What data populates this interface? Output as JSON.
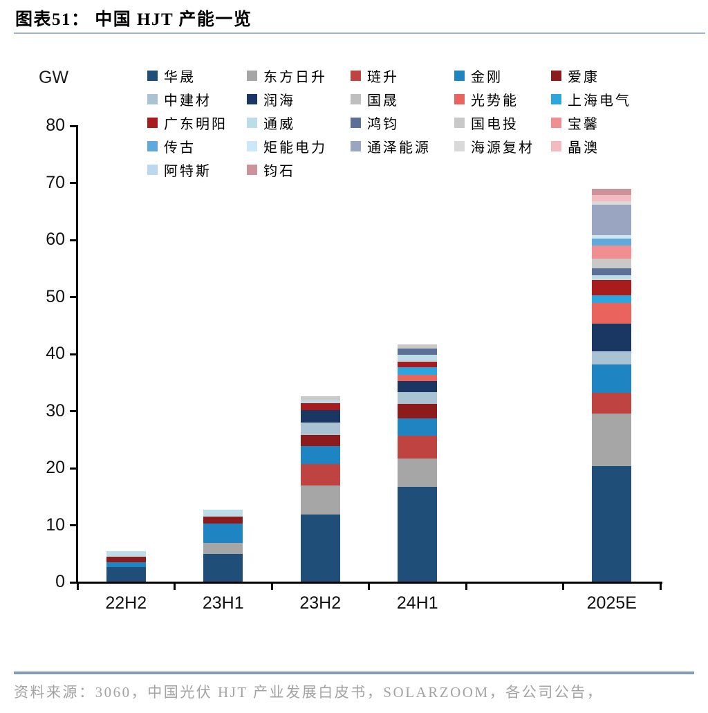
{
  "header": {
    "title": "图表51：  中国 HJT 产能一览"
  },
  "y_axis_unit": "GW",
  "footer": {
    "source": "资料来源：3060，中国光伏 HJT 产业发展白皮书，SOLARZOOM，各公司公告，"
  },
  "colors": {
    "title_underline": "#9DB3D2",
    "footer_divider": "#7F9CBE",
    "axis": "#000000",
    "source_text": "#A3A3A3"
  },
  "chart_data": {
    "type": "bar",
    "stacked": true,
    "title": "中国 HJT 产能一览",
    "unit": "GW",
    "categories": [
      "22H2",
      "23H1",
      "23H2",
      "24H1",
      "",
      "2025E"
    ],
    "ylim": [
      0,
      80
    ],
    "ytick_step": 10,
    "legend_position": "top",
    "grid": false,
    "series": [
      {
        "name": "华晟",
        "color": "#1F4E79",
        "values": [
          2.5,
          4.9,
          11.8,
          16.6,
          0,
          20.2
        ]
      },
      {
        "name": "东方日升",
        "color": "#A6A6A6",
        "values": [
          0,
          1.9,
          5.0,
          5.0,
          0,
          9.2
        ]
      },
      {
        "name": "琏升",
        "color": "#BF4340",
        "values": [
          0,
          0,
          3.8,
          4.0,
          0,
          3.7
        ]
      },
      {
        "name": "金刚",
        "color": "#1E84C2",
        "values": [
          0.9,
          3.4,
          3.2,
          3.0,
          0,
          5.0
        ]
      },
      {
        "name": "爱康",
        "color": "#8E1B1B",
        "values": [
          1.0,
          1.2,
          1.9,
          2.5,
          0,
          0
        ]
      },
      {
        "name": "中建材",
        "color": "#AAC3D2",
        "values": [
          0,
          0,
          2.2,
          2.1,
          0,
          2.3
        ]
      },
      {
        "name": "润海",
        "color": "#1A3764",
        "values": [
          0,
          0,
          2.2,
          2.0,
          0,
          4.8
        ]
      },
      {
        "name": "国晟",
        "color": "#BFBFBF",
        "values": [
          0,
          0,
          0,
          0,
          0,
          0
        ]
      },
      {
        "name": "光势能",
        "color": "#E8645C",
        "values": [
          0,
          0,
          0,
          1.1,
          0,
          3.6
        ]
      },
      {
        "name": "上海电气",
        "color": "#2BA6DE",
        "values": [
          0,
          0,
          0,
          1.3,
          0,
          1.4
        ]
      },
      {
        "name": "广东明阳",
        "color": "#A91C1E",
        "values": [
          0,
          0,
          1.2,
          0.9,
          0,
          2.7
        ]
      },
      {
        "name": "通威",
        "color": "#BCDDE8",
        "values": [
          0.9,
          1.2,
          0.5,
          1.3,
          0,
          0.8
        ]
      },
      {
        "name": "鸿钧",
        "color": "#5C6F97",
        "values": [
          0,
          0,
          0,
          1.0,
          0,
          1.2
        ]
      },
      {
        "name": "国电投",
        "color": "#C9C9C9",
        "values": [
          0,
          0,
          0.7,
          0.8,
          0,
          1.7
        ]
      },
      {
        "name": "宝馨",
        "color": "#F08E92",
        "values": [
          0,
          0,
          0,
          0,
          0,
          2.3
        ]
      },
      {
        "name": "传古",
        "color": "#60A9DC",
        "values": [
          0,
          0,
          0,
          0,
          0,
          1.2
        ]
      },
      {
        "name": "矩能电力",
        "color": "#CEE7F6",
        "values": [
          0,
          0,
          0,
          0,
          0,
          0.6
        ]
      },
      {
        "name": "通泽能源",
        "color": "#99A5C1",
        "values": [
          0,
          0,
          0,
          0,
          0,
          5.4
        ]
      },
      {
        "name": "海源复材",
        "color": "#D9D9D9",
        "values": [
          0,
          0,
          0,
          0,
          0,
          0.6
        ]
      },
      {
        "name": "晶澳",
        "color": "#F3BBC0",
        "values": [
          0,
          0,
          0,
          0,
          0,
          1.0
        ]
      },
      {
        "name": "阿特斯",
        "color": "#BCD8EE",
        "values": [
          0,
          0,
          0,
          0,
          0,
          0
        ]
      },
      {
        "name": "钧石",
        "color": "#CC939B",
        "values": [
          0,
          0,
          0,
          0,
          0,
          1.2
        ]
      }
    ]
  }
}
